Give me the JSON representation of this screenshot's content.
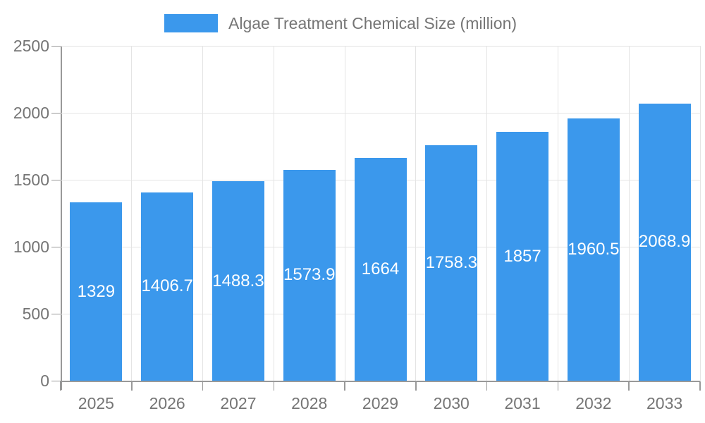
{
  "chart_data": {
    "type": "bar",
    "title": "Algae Treatment Chemical Size (million)",
    "categories": [
      "2025",
      "2026",
      "2027",
      "2028",
      "2029",
      "2030",
      "2031",
      "2032",
      "2033"
    ],
    "values": [
      1329,
      1406.7,
      1488.3,
      1573.9,
      1664,
      1758.3,
      1857,
      1960.5,
      2068.9
    ],
    "value_labels": [
      "1329",
      "1406.7",
      "1488.3",
      "1573.9",
      "1664",
      "1758.3",
      "1857",
      "1960.5",
      "2068.9"
    ],
    "xlabel": "",
    "ylabel": "",
    "ylim": [
      0,
      2500
    ],
    "yticks": [
      0,
      500,
      1000,
      1500,
      2000,
      2500
    ],
    "ytick_labels": [
      "0",
      "500",
      "1000",
      "1500",
      "2000",
      "2500"
    ],
    "grid": true,
    "legend_position": "top",
    "value_label_position": "inside-center"
  },
  "legend": {
    "label": "Algae Treatment Chemical Size (million)"
  },
  "colors": {
    "bar": "#3b98ec",
    "axis_text": "#757575",
    "axis_line": "#999999",
    "gridline": "#e4e4e4",
    "value_label": "#ffffff",
    "background": "#ffffff"
  }
}
